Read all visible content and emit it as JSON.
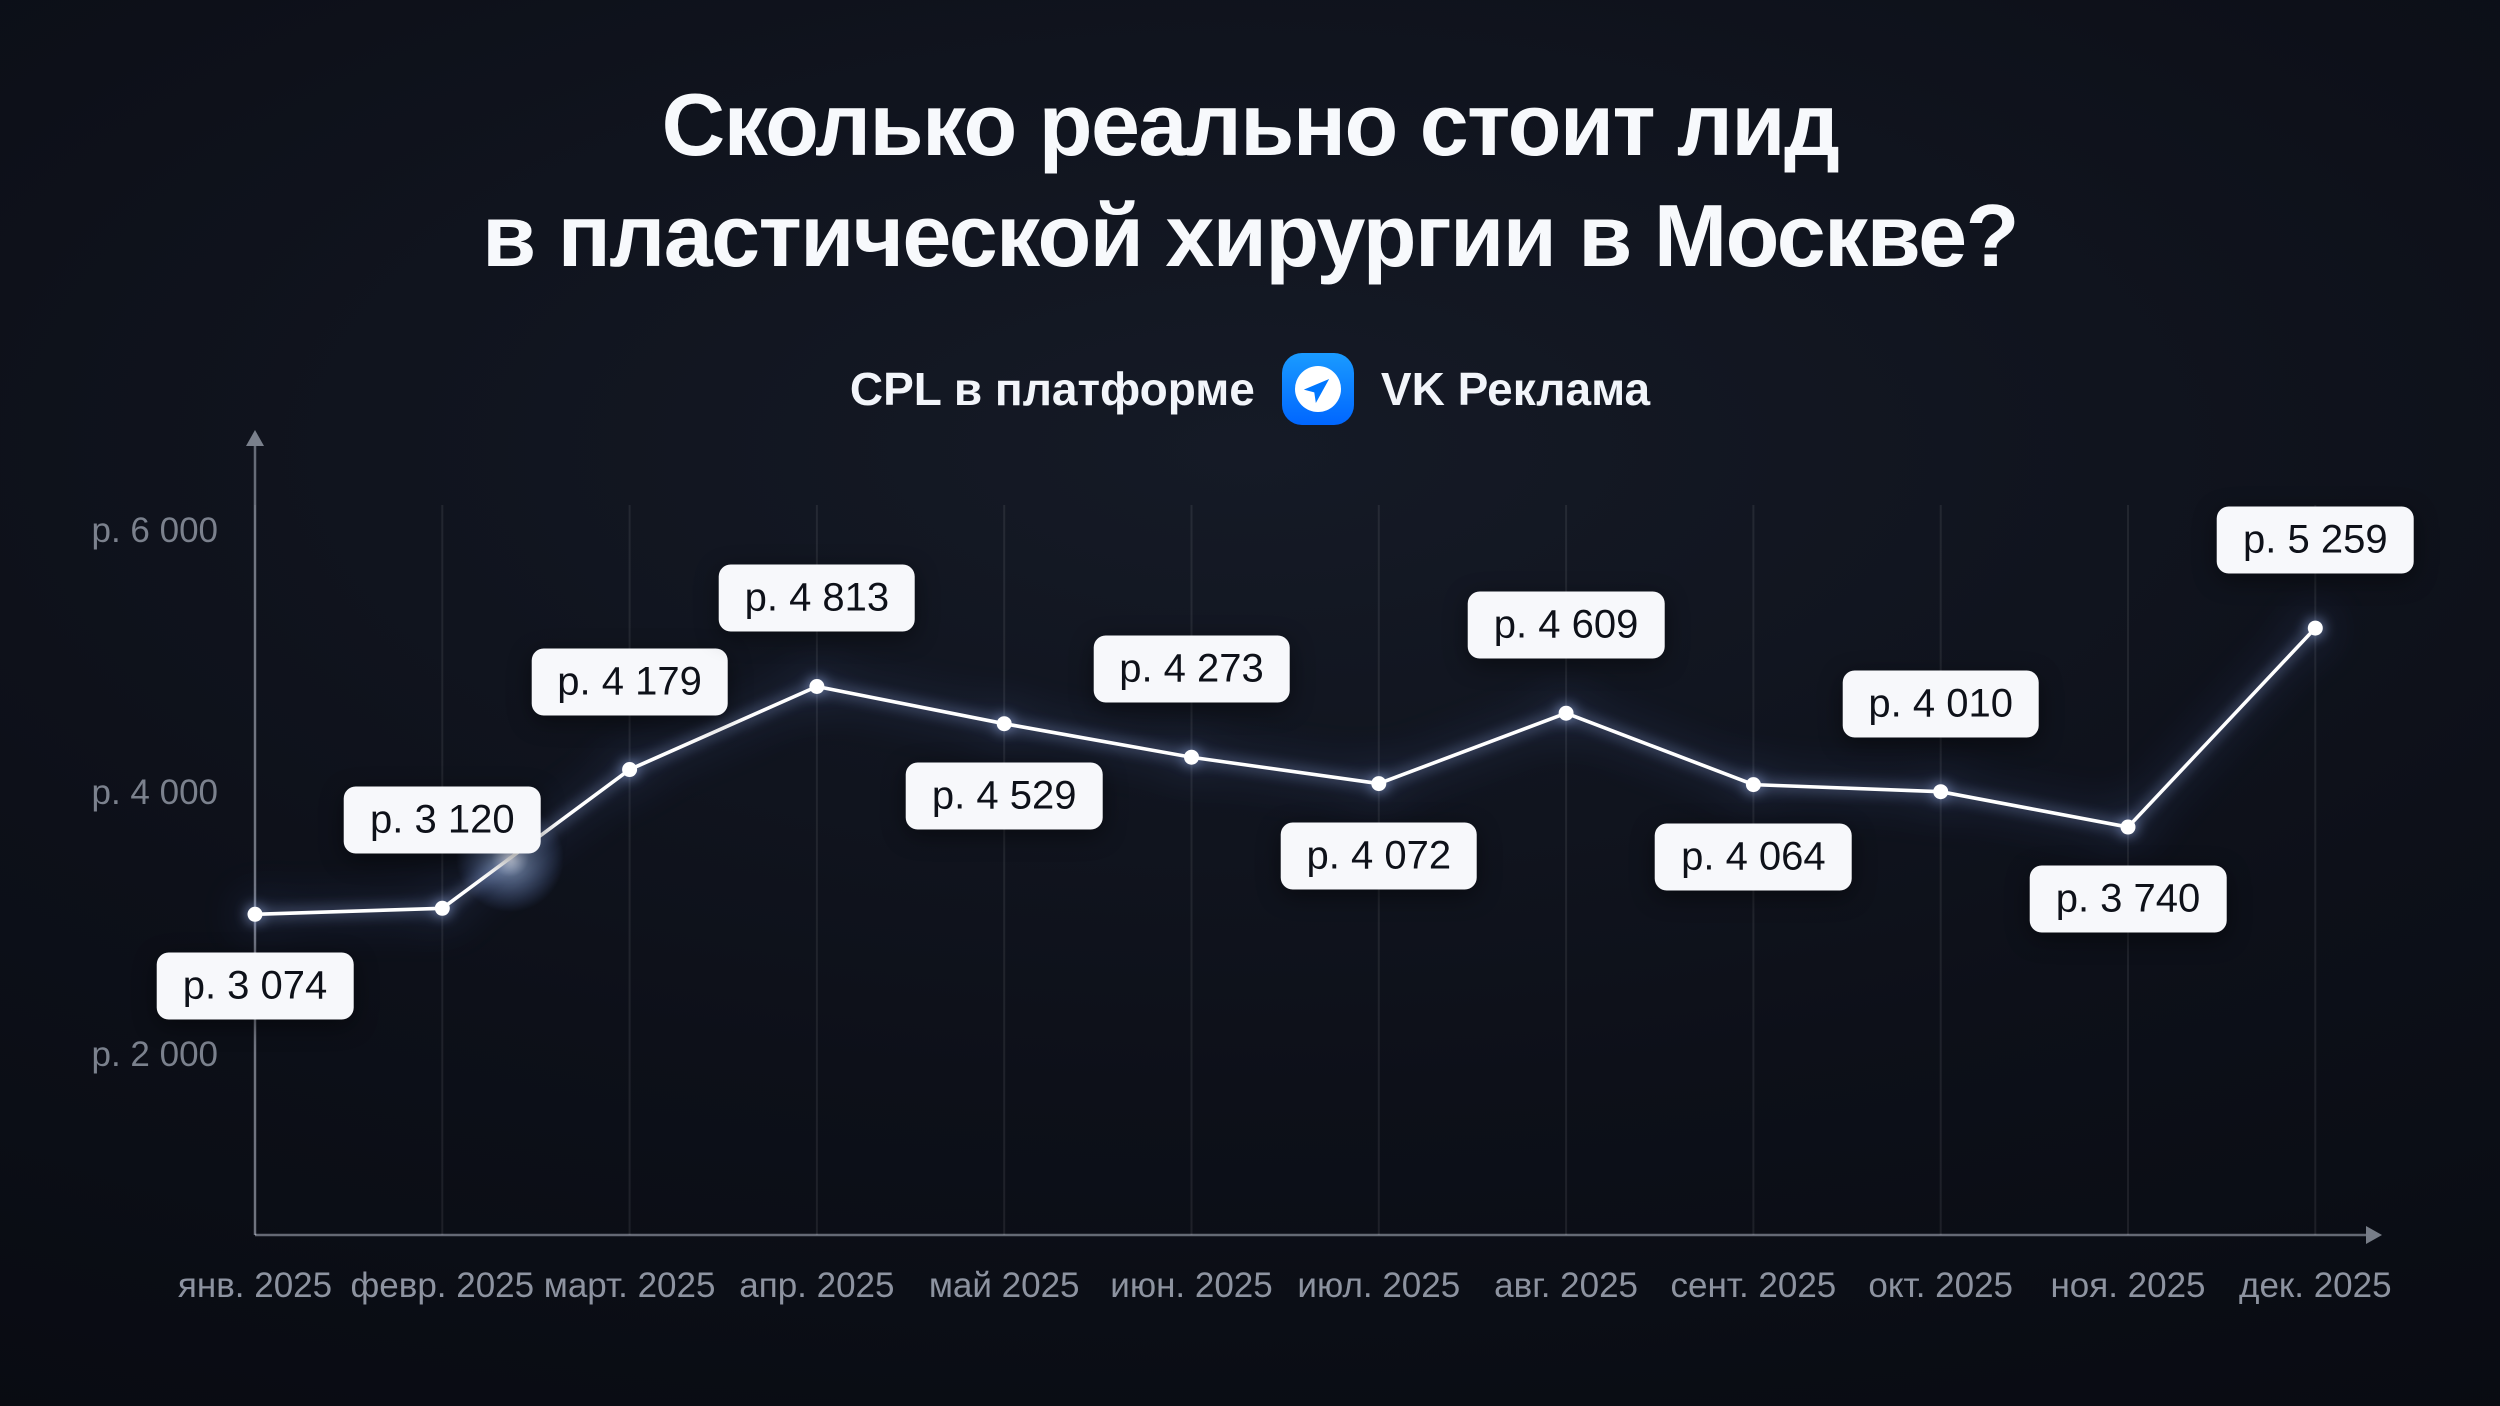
{
  "title": {
    "line1": "Сколько реально стоит лид",
    "line2": "в пластической хирургии в Москве?"
  },
  "subtitle": {
    "label": "CPL в платформе",
    "platform_name": "VK Реклама",
    "platform_icon": "vk-ads-icon"
  },
  "colors": {
    "background": "#0d1019",
    "line": "#ffffff",
    "label_bg": "#f7f8fb",
    "label_text": "#0e1119",
    "axis_text": "#8d93a0",
    "vk_blue": "#0077ff"
  },
  "chart_data": {
    "type": "line",
    "title": "Сколько реально стоит лид в пластической хирургии в Москве?",
    "subtitle": "CPL в платформе VK Реклама",
    "categories": [
      "янв. 2025",
      "февр. 2025",
      "март. 2025",
      "апр. 2025",
      "май 2025",
      "июн. 2025",
      "июл. 2025",
      "авг. 2025",
      "сент. 2025",
      "окт. 2025",
      "ноя. 2025",
      "дек. 2025"
    ],
    "values": [
      3074,
      3120,
      4179,
      4813,
      4529,
      4273,
      4072,
      4609,
      4064,
      4010,
      3740,
      5259
    ],
    "point_labels": [
      "р. 3 074",
      "р. 3 120",
      "р. 4 179",
      "р. 4 813",
      "р. 4 529",
      "р. 4 273",
      "р. 4 072",
      "р. 4 609",
      "р. 4 064",
      "р. 4 010",
      "р. 3 740",
      "р. 5 259"
    ],
    "label_sides": [
      "below",
      "above",
      "above",
      "above",
      "below",
      "above",
      "below",
      "above",
      "below",
      "above",
      "below",
      "above"
    ],
    "y_ticks": [
      {
        "value": 2000,
        "label": "р. 2 000"
      },
      {
        "value": 4000,
        "label": "р. 4 000"
      },
      {
        "value": 6000,
        "label": "р. 6 000"
      }
    ],
    "ylim": [
      2000,
      6600
    ],
    "grid": "vertical",
    "legend_position": "none"
  }
}
